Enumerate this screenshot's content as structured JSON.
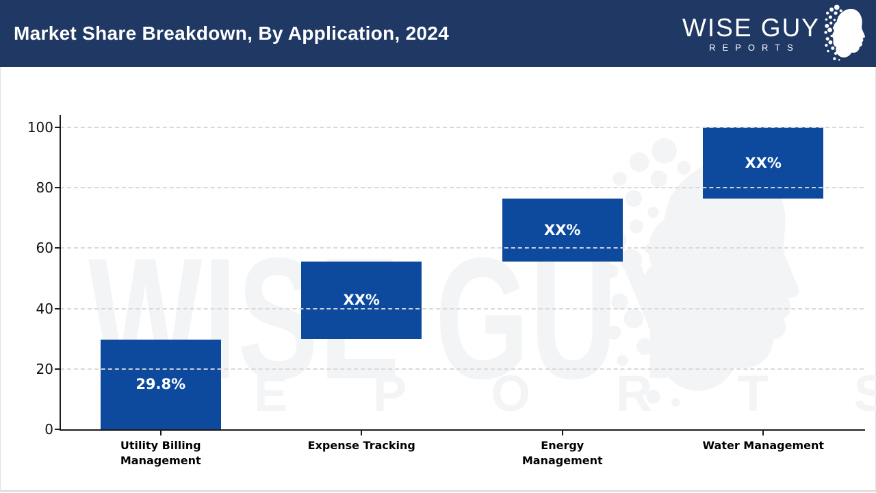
{
  "header": {
    "title": "Market Share Breakdown, By Application, 2024",
    "logo": {
      "line1": "WISE GUY",
      "line2": "REPORTS"
    }
  },
  "watermark": {
    "line1": "WISE GUY",
    "line2": "REPORTS"
  },
  "colors": {
    "header_bg": "#1f3864",
    "bar": "#0d4a9e",
    "bar_label": "#ffffff",
    "gridline": "#d8d8d8",
    "axis": "#1a1a1a",
    "watermark": "#f3f4f6"
  },
  "chart_data": {
    "type": "bar",
    "subtype": "waterfall",
    "title": "Market Share Breakdown, By Application, 2024",
    "xlabel": "",
    "ylabel": "",
    "ylim": [
      0,
      100
    ],
    "yticks": [
      0,
      20,
      40,
      60,
      80,
      100
    ],
    "grid": "horizontal-dashed",
    "legend": "none",
    "categories": [
      "Utility Billing Management",
      "Expense Tracking",
      "Energy Management",
      "Water Management"
    ],
    "segments": [
      {
        "start": 0,
        "end": 29.8,
        "label": "29.8%"
      },
      {
        "start": 30,
        "end": 55.5,
        "label": "XX%"
      },
      {
        "start": 55.5,
        "end": 76.5,
        "label": "XX%"
      },
      {
        "start": 76.5,
        "end": 100,
        "label": "XX%"
      }
    ]
  }
}
